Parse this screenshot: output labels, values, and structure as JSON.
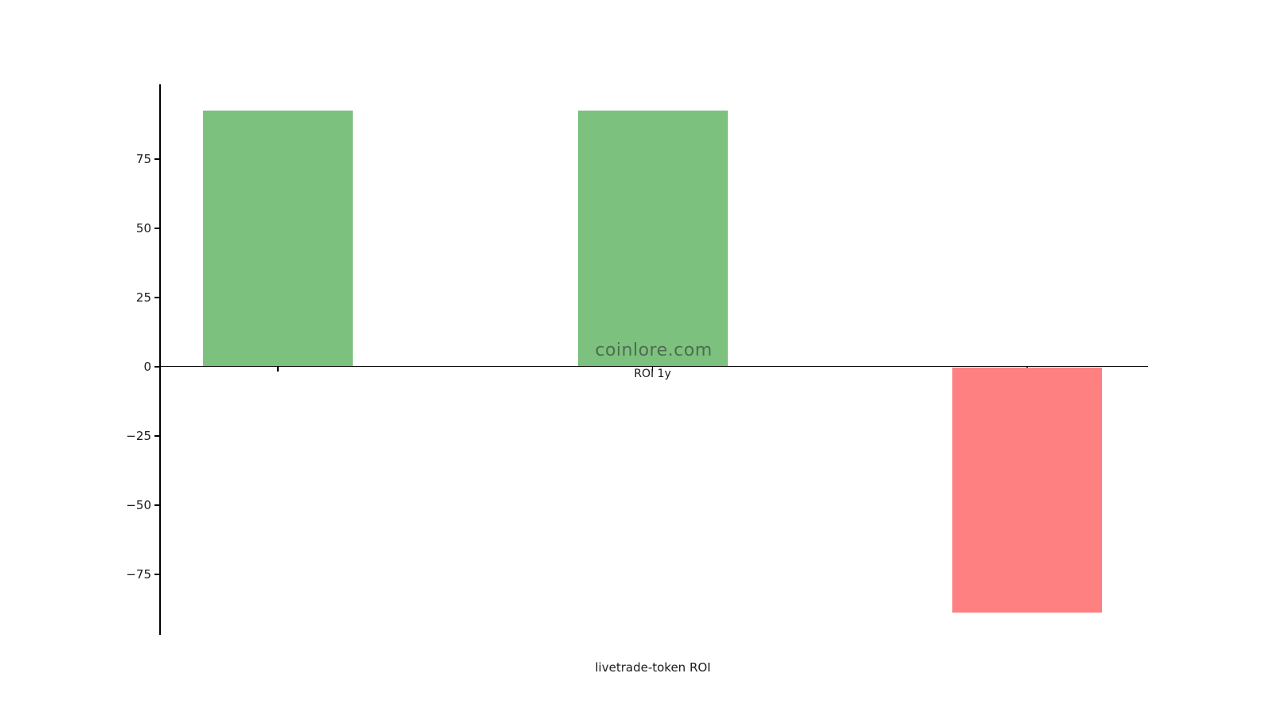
{
  "page": {
    "background_color": "#ffffff"
  },
  "chart_data": {
    "type": "bar",
    "title": "livetrade-token ROI",
    "watermark": "coinlore.com",
    "categories": [
      "",
      "ROI 1y",
      ""
    ],
    "values": [
      92.4,
      92.4,
      -88.5
    ],
    "bar_colors": [
      "#7dc17e",
      "#7dc17e",
      "#ff8080"
    ],
    "positive_color": "#7dc17e",
    "negative_color": "#ff8080",
    "axis_color": "#000000",
    "yticks": [
      75,
      50,
      25,
      0,
      -25,
      -50,
      -75
    ],
    "ytick_labels": [
      "75",
      "50",
      "25",
      "0",
      "−25",
      "−50",
      "−75"
    ],
    "ylim": [
      -97,
      102
    ],
    "xlabel": "",
    "ylabel": "",
    "grid": false,
    "legend": false
  }
}
